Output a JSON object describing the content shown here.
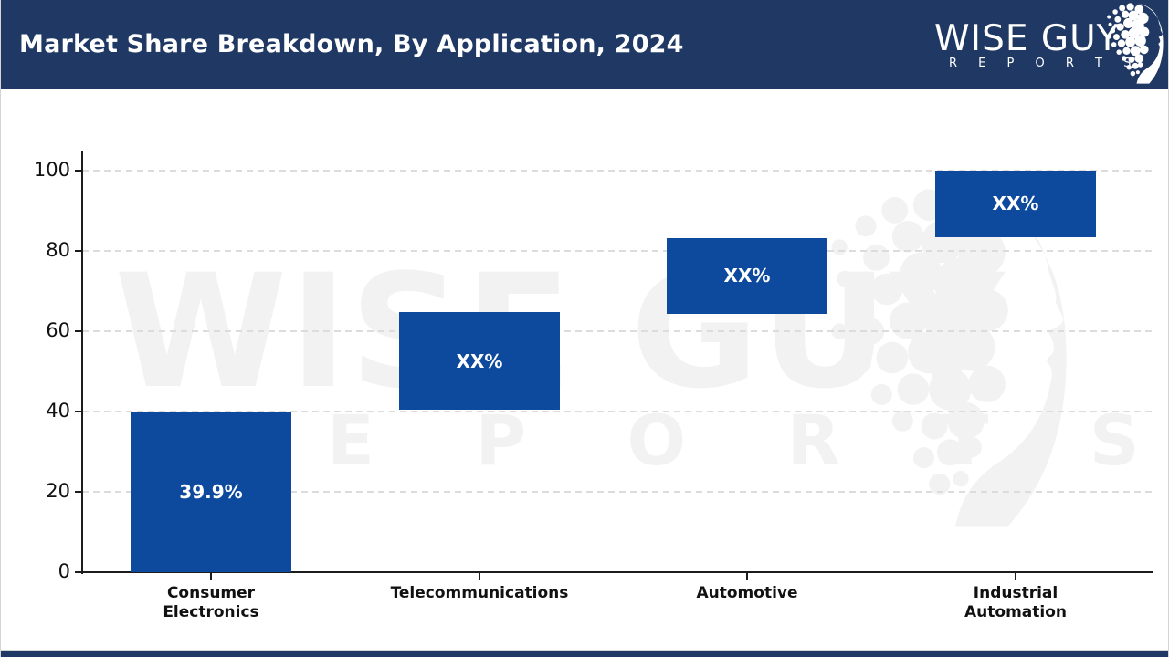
{
  "header": {
    "title": "Market Share Breakdown, By Application, 2024",
    "logo": {
      "line1": "WISE GUY",
      "line2": "R E P O R T S"
    }
  },
  "watermark": {
    "line1": "WISE GUY",
    "line2": "R E P O R T S",
    "head_icon": "dotted-head-profile"
  },
  "colors": {
    "header_bg": "#1f3864",
    "footer_bg": "#1f3864",
    "bar": "#0d4a9e",
    "bar_label": "#ffffff",
    "grid": "#dcdcdc",
    "axis": "#1c1c1c",
    "watermark": "#f2f2f2",
    "page_border": "#d4d4d4"
  },
  "chart_data": {
    "type": "bar",
    "subtype": "floating-waterfall",
    "title": "Market Share Breakdown, By Application, 2024",
    "xlabel": "",
    "ylabel": "",
    "ylim": [
      0,
      100
    ],
    "yticks": [
      0,
      20,
      40,
      60,
      80,
      100
    ],
    "grid": "horizontal-dashed",
    "legend": "none",
    "categories": [
      "Consumer Electronics",
      "Telecommunications",
      "Automotive",
      "Industrial Automation"
    ],
    "category_label_lines": [
      [
        "Consumer",
        "Electronics"
      ],
      [
        "Telecommunications"
      ],
      [
        "Automotive"
      ],
      [
        "Industrial",
        "Automation"
      ]
    ],
    "bars": [
      {
        "category": "Consumer Electronics",
        "start": 0,
        "end": 40,
        "label": "39.9%"
      },
      {
        "category": "Telecommunications",
        "start": 40.4,
        "end": 64.6,
        "label": "XX%"
      },
      {
        "category": "Automotive",
        "start": 64.3,
        "end": 83.2,
        "label": "XX%"
      },
      {
        "category": "Industrial Automation",
        "start": 83.4,
        "end": 100,
        "label": "XX%"
      }
    ]
  }
}
